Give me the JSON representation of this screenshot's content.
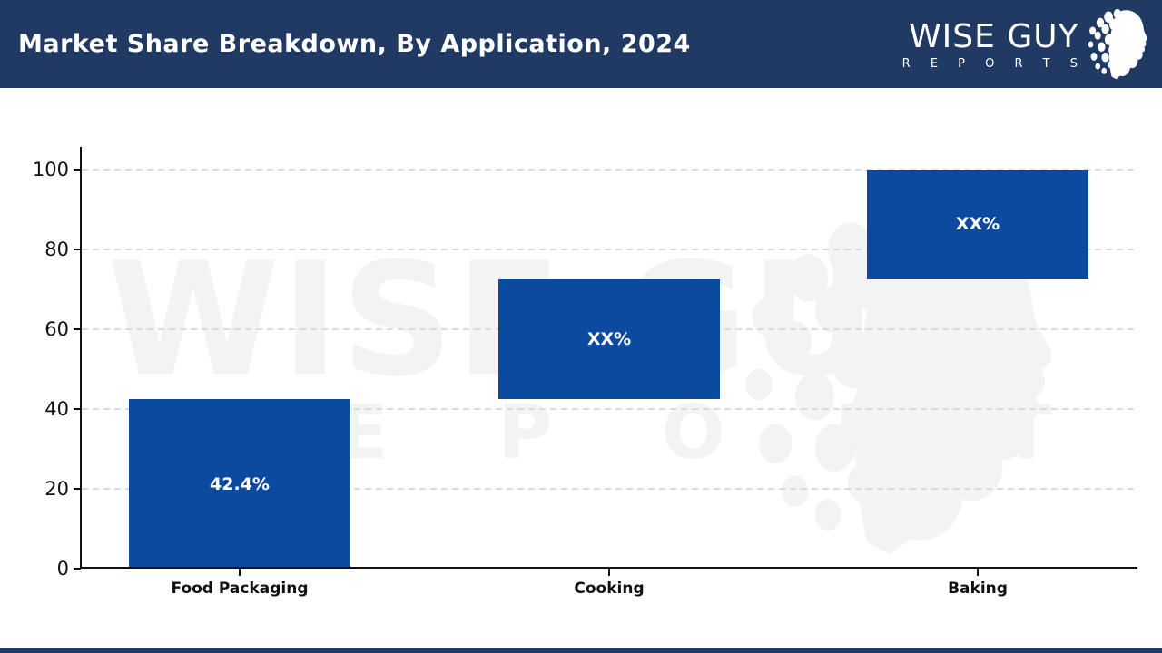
{
  "header": {
    "title": "Market Share Breakdown, By Application, 2024",
    "logo": {
      "line1": "WISE GUY",
      "line2": "R E P O R T S"
    }
  },
  "watermark": {
    "line1": "WISE GUY",
    "line2": "R E P O R T S"
  },
  "chart_data": {
    "type": "bar",
    "variant": "waterfall-floating-segments",
    "title": "Market Share Breakdown, By Application, 2024",
    "categories": [
      "Food Packaging",
      "Cooking",
      "Baking"
    ],
    "segments": [
      {
        "category": "Food Packaging",
        "start": 0,
        "end": 42.4,
        "label": "42.4%"
      },
      {
        "category": "Cooking",
        "start": 42.4,
        "end": 72.6,
        "label": "XX%"
      },
      {
        "category": "Baking",
        "start": 72.6,
        "end": 100,
        "label": "XX%"
      }
    ],
    "yticks": [
      "0",
      "20",
      "40",
      "60",
      "80",
      "100"
    ],
    "ylim": [
      0,
      105.5
    ],
    "xlabel": "",
    "ylabel": "",
    "grid": "dashed-horizontal",
    "legend": "none",
    "bar_color": "#0B4A9F",
    "value_label_color": "#FFFFFF"
  },
  "colors": {
    "header_bg": "#213A64",
    "bar": "#0B4A9F",
    "grid": "#DCDCDC",
    "axis": "#111111",
    "watermark": "#F2F3F5"
  }
}
